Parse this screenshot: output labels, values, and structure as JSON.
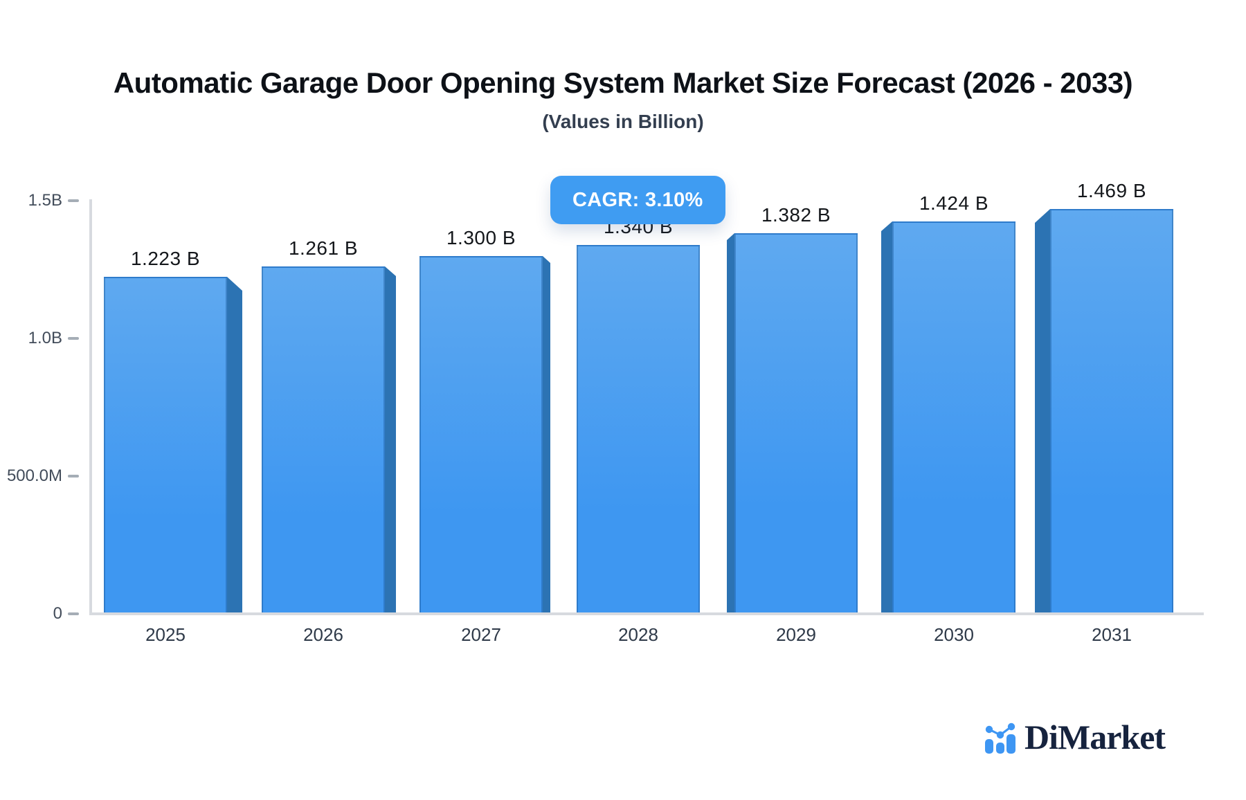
{
  "page": {
    "background": "#ffffff"
  },
  "chart_data": {
    "type": "bar",
    "title": "Automatic Garage Door Opening System Market Size Forecast (2026 - 2033)",
    "subtitle": "(Values in Billion)",
    "annotation_label": "CAGR: 3.10%",
    "categories": [
      "2025",
      "2026",
      "2027",
      "2028",
      "2029",
      "2030",
      "2031"
    ],
    "values": [
      1.223,
      1.261,
      1.3,
      1.34,
      1.382,
      1.424,
      1.469
    ],
    "value_labels": [
      "1.223 B",
      "1.261 B",
      "1.300 B",
      "1.340 B",
      "1.382 B",
      "1.424 B",
      "1.469 B"
    ],
    "ylim": [
      0,
      1.5
    ],
    "yticks": [
      {
        "v": 0,
        "label": "0"
      },
      {
        "v": 0.5,
        "label": "500.0M"
      },
      {
        "v": 1.0,
        "label": "1.0B"
      },
      {
        "v": 1.5,
        "label": "1.5B"
      }
    ],
    "grid": false,
    "legend": false,
    "bar_style": "3d-perspective-center"
  },
  "colors": {
    "accent": "#3f9cf2",
    "bar_top": "#5fa9f0",
    "bar_bottom": "#3e97f1",
    "bar_side": "#2c73b3",
    "axis_line": "#d7dadf",
    "tick": "#a5adb6",
    "title": "#0d1117",
    "subtitle": "#333e4f",
    "axis_label": "#424c5a",
    "year_label": "#2e3948",
    "value_label": "#14171b",
    "brand_text": "#16233e",
    "brand_icon": "#3e96f3",
    "badge_text": "#ffffff"
  },
  "branding": {
    "name": "DiMarket",
    "icon": "mini-bar-chart-icon"
  }
}
